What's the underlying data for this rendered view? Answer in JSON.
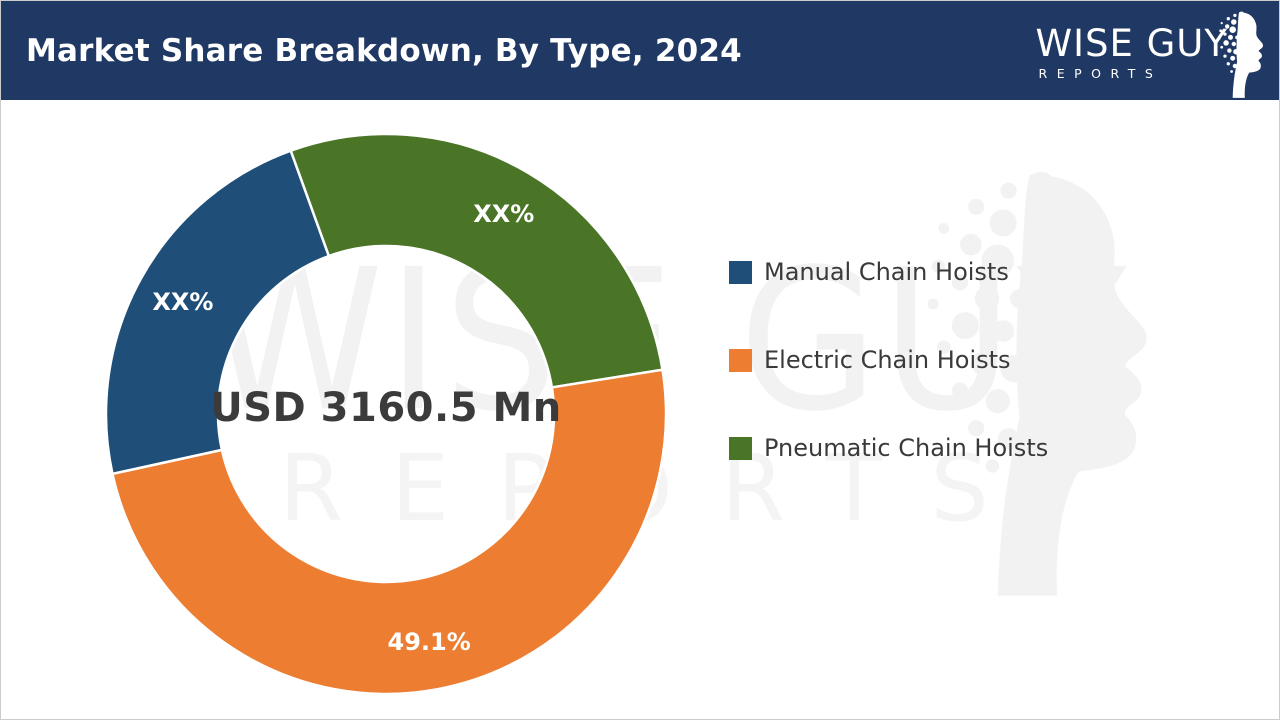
{
  "header": {
    "title": "Market Share Breakdown, By Type, 2024",
    "background_color": "#1F3864",
    "logo": {
      "wordmark": "WISE GUY",
      "subtext": "REPORTS"
    }
  },
  "watermark": {
    "line1": "WISE GUY",
    "line2": "REPORTS"
  },
  "chart_data": {
    "type": "pie",
    "subtype": "donut",
    "title": "Market Share Breakdown, By Type, 2024",
    "center_label": "USD 3160.5 Mn",
    "rotation_deg": -19.9,
    "inner_radius_ratio": 0.6,
    "legend_position": "right",
    "segments": [
      {
        "name": "Pneumatic Chain Hoists",
        "pct": 28.0,
        "display_label": "XX%",
        "color": "#4A7527"
      },
      {
        "name": "Electric Chain Hoists",
        "pct": 49.1,
        "display_label": "49.1%",
        "color": "#ED7D31"
      },
      {
        "name": "Manual Chain Hoists",
        "pct": 22.9,
        "display_label": "XX%",
        "color": "#1F4E79"
      }
    ],
    "legend": [
      {
        "label": "Manual Chain Hoists",
        "color": "#1F4E79"
      },
      {
        "label": "Electric Chain Hoists",
        "color": "#ED7D31"
      },
      {
        "label": "Pneumatic Chain Hoists",
        "color": "#4A7527"
      }
    ]
  }
}
